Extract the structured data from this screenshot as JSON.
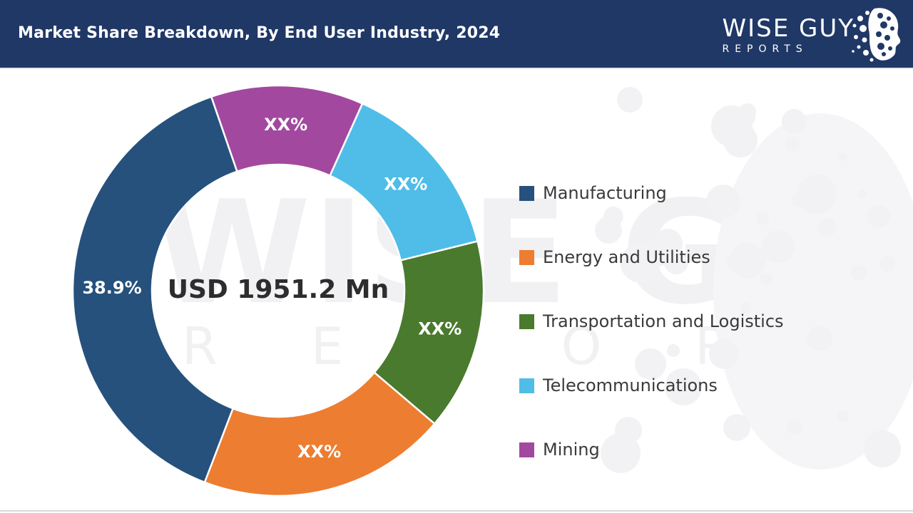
{
  "header": {
    "title": "Market Share Breakdown, By End User Industry, 2024",
    "background_color": "#203866",
    "logo": {
      "line1": "WISE GUY",
      "line2": "REPORTS"
    }
  },
  "watermark": {
    "line1": "WISE GUY",
    "line2": "R E P O R T S"
  },
  "chart_data": {
    "type": "pie",
    "variant": "donut",
    "title": "Market Share Breakdown, By End User Industry, 2024",
    "center_label": "USD 1951.2 Mn",
    "legend_position": "right",
    "direction": "counterclockwise",
    "start_angle_clockwise_from_top_deg": 341,
    "categories": [
      "Manufacturing",
      "Energy and Utilities",
      "Transportation and Logistics",
      "Telecommunications",
      "Mining"
    ],
    "values": [
      38.9,
      19.6,
      15.1,
      14.4,
      12.0
    ],
    "values_note": "Only Manufacturing value is labeled (38.9%); other slice values estimated from arc angles, labels masked as XX%",
    "slice_labels": [
      "38.9%",
      "XX%",
      "XX%",
      "XX%",
      "XX%"
    ],
    "colors": [
      "#25517c",
      "#ed7d31",
      "#4a7a2d",
      "#4fbde7",
      "#a2489e"
    ],
    "label_text_color": "#ffffff"
  }
}
